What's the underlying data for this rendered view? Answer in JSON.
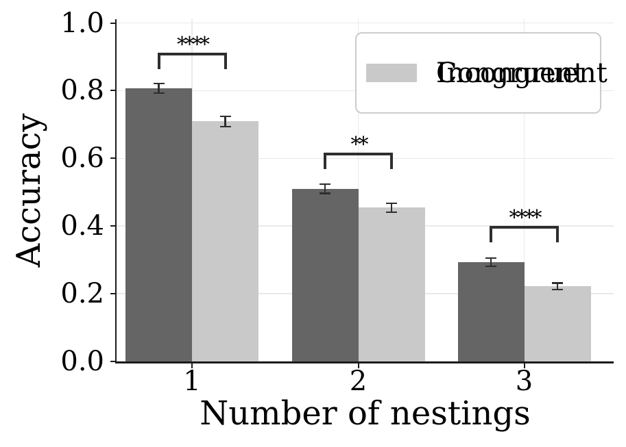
{
  "chart_data": {
    "type": "bar",
    "title": "",
    "xlabel": "Number of nestings",
    "ylabel": "Accuracy",
    "categories": [
      "1",
      "2",
      "3"
    ],
    "series": [
      {
        "name": "Incongruent",
        "color": "#656565",
        "values": [
          0.807,
          0.51,
          0.293
        ],
        "errors": [
          0.014,
          0.014,
          0.012
        ]
      },
      {
        "name": "Congruent",
        "color": "#c9c9c9",
        "values": [
          0.709,
          0.454,
          0.222
        ],
        "errors": [
          0.015,
          0.013,
          0.01
        ]
      }
    ],
    "ylim": [
      0.0,
      1.0
    ],
    "yticks": [
      "0.0",
      "0.2",
      "0.4",
      "0.6",
      "0.8",
      "1.0"
    ],
    "grid": true,
    "legend_position": "upper right",
    "annotations": [
      {
        "category": "1",
        "label": "****",
        "y": 0.912
      },
      {
        "category": "2",
        "label": "**",
        "y": 0.617
      },
      {
        "category": "3",
        "label": "****",
        "y": 0.4
      }
    ],
    "error_color": "#2e2e2e",
    "axis_color": "#1c1c1c",
    "grid_color": "#e9e9e9"
  }
}
